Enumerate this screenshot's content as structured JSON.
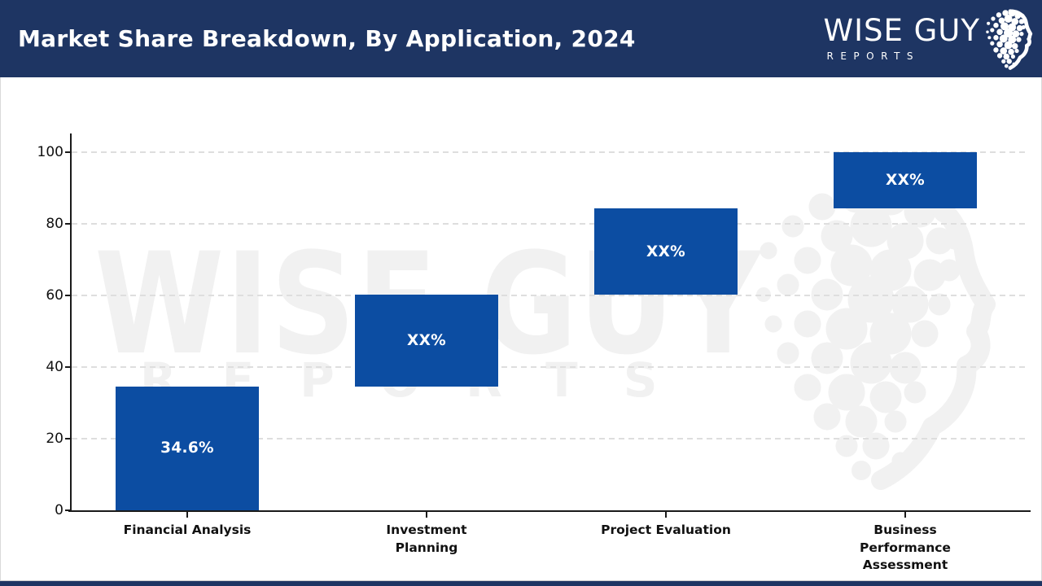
{
  "header": {
    "title": "Market Share Breakdown, By Application, 2024",
    "logo": {
      "line1": "WISE GUY",
      "line2": "REPORTS"
    }
  },
  "watermark": {
    "line1": "WISE GUY",
    "line2": "REPORTS"
  },
  "colors": {
    "header_bg": "#1e3563",
    "bar": "#0c4da2",
    "bar_label": "#ffffff",
    "grid": "#dedede",
    "axis": "#1a1a1a",
    "watermark": "#f1f1f1"
  },
  "chart_data": {
    "type": "waterfall-bar",
    "title": "Market Share Breakdown, By Application, 2024",
    "categories": [
      "Financial Analysis",
      "Investment\nPlanning",
      "Project Evaluation",
      "Business\nPerformance\nAssessment"
    ],
    "segments": [
      {
        "category": "Financial Analysis",
        "start": 0,
        "end": 34.6,
        "label": "34.6%"
      },
      {
        "category": "Investment Planning",
        "start": 34.6,
        "end": 60.2,
        "label": "XX%"
      },
      {
        "category": "Project Evaluation",
        "start": 60.2,
        "end": 84.3,
        "label": "XX%"
      },
      {
        "category": "Business Performance Assessment",
        "start": 84.3,
        "end": 100,
        "label": "XX%"
      }
    ],
    "yticks": [
      0,
      20,
      40,
      60,
      80,
      100
    ],
    "ylim": [
      0,
      104
    ],
    "grid": {
      "horizontal": true,
      "style": "dashed"
    },
    "legend": null
  }
}
